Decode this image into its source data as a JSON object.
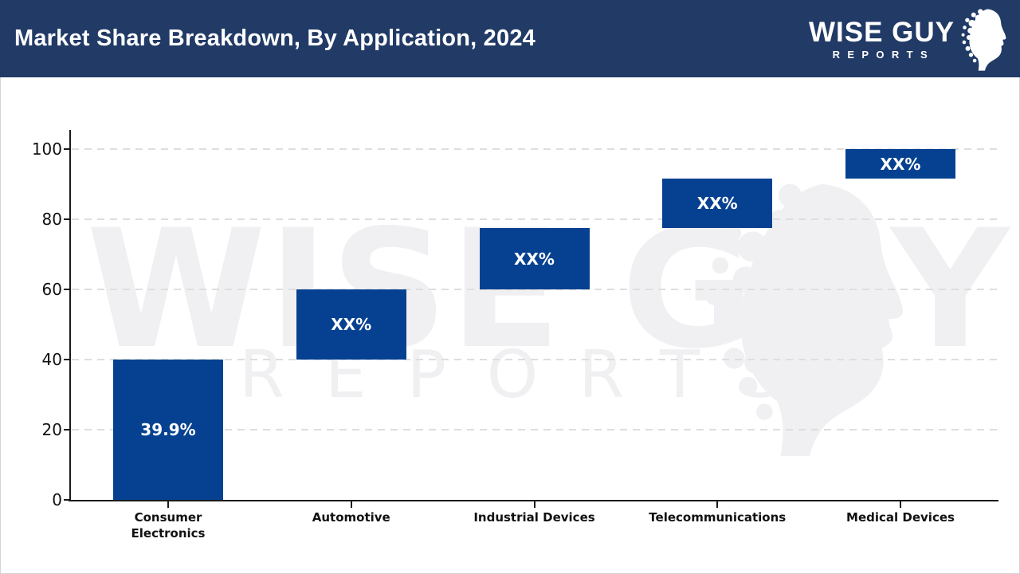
{
  "header": {
    "title": "Market Share Breakdown, By Application, 2024",
    "logo": {
      "line1": "WISE GUY",
      "line2": "REPORTS"
    }
  },
  "watermark": {
    "line1": "WISE GUY",
    "line2": "REPORTS"
  },
  "colors": {
    "header_bg": "#213a66",
    "bar": "#064191",
    "bar_label": "#ffffff",
    "axis": "#1a1a1a",
    "grid": "#dedede",
    "watermark": "#f0f0f3",
    "frame_border": "#d4d4d6"
  },
  "chart_data": {
    "type": "bar",
    "variant": "waterfall",
    "title": "Market Share Breakdown, By Application, 2024",
    "categories": [
      "Consumer Electronics",
      "Automotive",
      "Industrial Devices",
      "Telecommunications",
      "Medical Devices"
    ],
    "bars": [
      {
        "category": "Consumer Electronics",
        "display": "Consumer\nElectronics",
        "start": 0,
        "end": 39.9,
        "label": "39.9%"
      },
      {
        "category": "Automotive",
        "display": "Automotive",
        "start": 39.9,
        "end": 60,
        "label": "XX%"
      },
      {
        "category": "Industrial Devices",
        "display": "Industrial Devices",
        "start": 60,
        "end": 77.5,
        "label": "XX%"
      },
      {
        "category": "Telecommunications",
        "display": "Telecommunications",
        "start": 77.5,
        "end": 91.5,
        "label": "XX%"
      },
      {
        "category": "Medical Devices",
        "display": "Medical Devices",
        "start": 91.5,
        "end": 100,
        "label": "XX%"
      }
    ],
    "xlabel": "",
    "ylabel": "",
    "ylim": [
      0,
      100
    ],
    "yticks": [
      0,
      20,
      40,
      60,
      80,
      100
    ],
    "grid": "horizontal-dashed",
    "legend": "none",
    "bar_color": "#064191",
    "bar_label_color": "#ffffff"
  }
}
